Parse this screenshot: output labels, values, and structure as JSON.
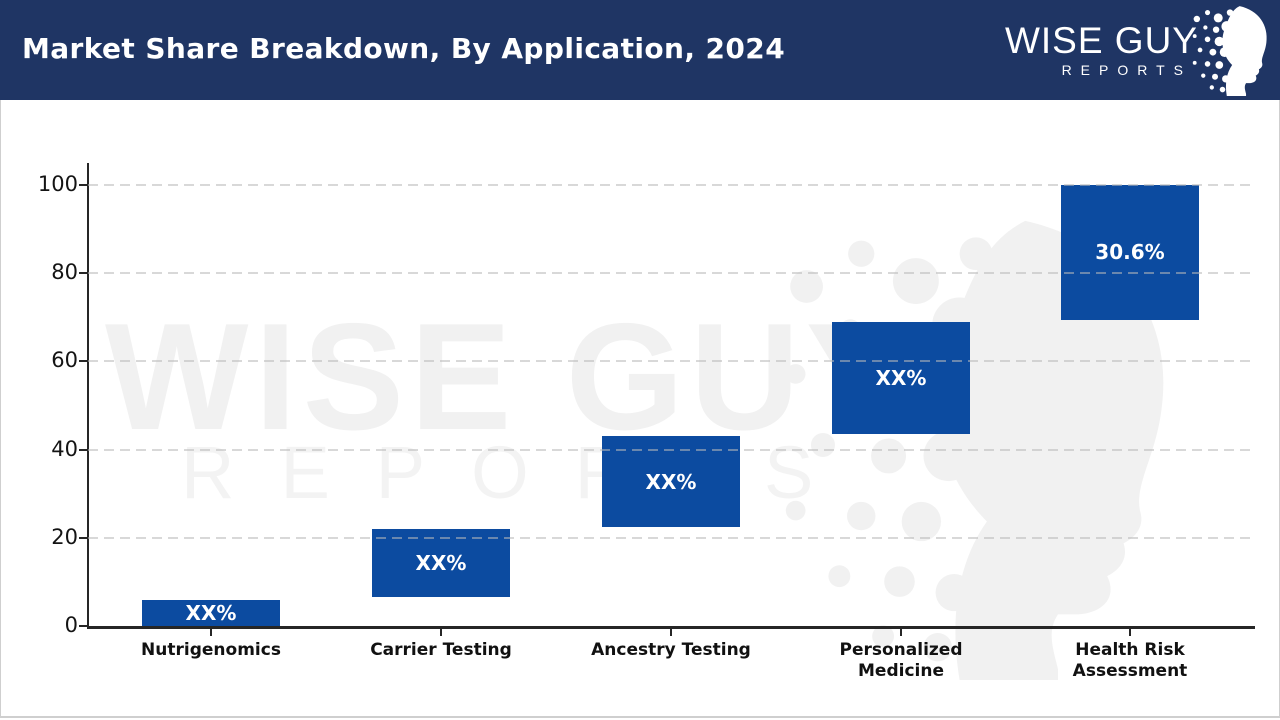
{
  "header": {
    "title": "Market Share Breakdown, By Application, 2024"
  },
  "logo": {
    "wordmark": "WISE GUY",
    "subtext": "REPORTS"
  },
  "watermark": {
    "line1": "WISE GUY",
    "line2": "REPORTS"
  },
  "colors": {
    "header_bg": "#1f3564",
    "bar": "#0c4ba0",
    "axis": "#262626",
    "grid": "#d9d9d9",
    "watermark": "#f1f1f1"
  },
  "chart_data": {
    "type": "bar",
    "subtype": "waterfall",
    "title": "Market Share Breakdown, By Application, 2024",
    "categories": [
      "Nutrigenomics",
      "Carrier Testing",
      "Ancestry Testing",
      "Personalized\nMedicine",
      "Health Risk\nAssessment"
    ],
    "segments": [
      {
        "category": "Nutrigenomics",
        "start": 0,
        "end": 6,
        "label": "XX%"
      },
      {
        "category": "Carrier Testing",
        "start": 6.5,
        "end": 22,
        "label": "XX%"
      },
      {
        "category": "Ancestry Testing",
        "start": 22.5,
        "end": 43,
        "label": "XX%"
      },
      {
        "category": "Personalized Medicine",
        "start": 43.5,
        "end": 69,
        "label": "XX%"
      },
      {
        "category": "Health Risk Assessment",
        "start": 69.4,
        "end": 100,
        "label": "30.6%"
      }
    ],
    "yticks": [
      0,
      20,
      40,
      60,
      80,
      100
    ],
    "ylim": [
      0,
      105
    ],
    "xlabel": "",
    "ylabel": "",
    "grid": "horizontal-dashed",
    "legend": "none",
    "bar_color": "#0c4ba0"
  }
}
